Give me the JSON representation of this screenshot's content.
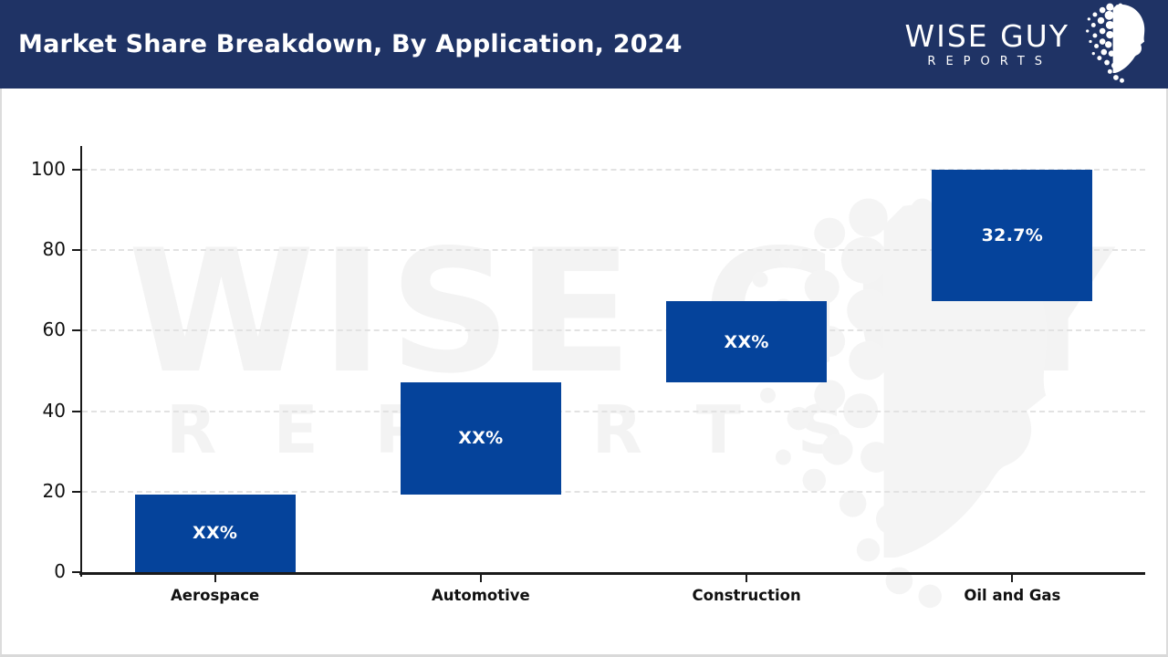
{
  "header": {
    "title": "Market Share Breakdown, By Application, 2024",
    "bg_color": "#1f3365",
    "logo": {
      "line1": "WISE GUY",
      "line2": "REPORTS",
      "head_icon": "dotted-head-profile-icon"
    }
  },
  "watermark": {
    "line1": "WISE GUY",
    "line2": "REPORTS",
    "head_icon": "dotted-head-profile-icon"
  },
  "chart_data": {
    "type": "bar",
    "subtype": "waterfall-floating-bars",
    "title": "Market Share Breakdown, By Application, 2024",
    "categories": [
      "Aerospace",
      "Automotive",
      "Construction",
      "Oil and Gas"
    ],
    "segments": [
      {
        "category": "Aerospace",
        "start": 0,
        "end": 19.3,
        "value_label": "XX%"
      },
      {
        "category": "Automotive",
        "start": 19.3,
        "end": 47.2,
        "value_label": "XX%"
      },
      {
        "category": "Construction",
        "start": 47.2,
        "end": 67.3,
        "value_label": "XX%"
      },
      {
        "category": "Oil and Gas",
        "start": 67.3,
        "end": 100,
        "value_label": "32.7%"
      }
    ],
    "xlabel": "",
    "ylabel": "",
    "ylim": [
      0,
      100
    ],
    "yticks": [
      0,
      20,
      40,
      60,
      80,
      100
    ],
    "grid": "horizontal-dashed",
    "legend": "none",
    "bar_color": "#05439b",
    "bar_label_color": "#ffffff",
    "axis_color": "#1a1a1a",
    "gridline_color": "#e2e2e2",
    "tick_label_color": "#111111"
  }
}
